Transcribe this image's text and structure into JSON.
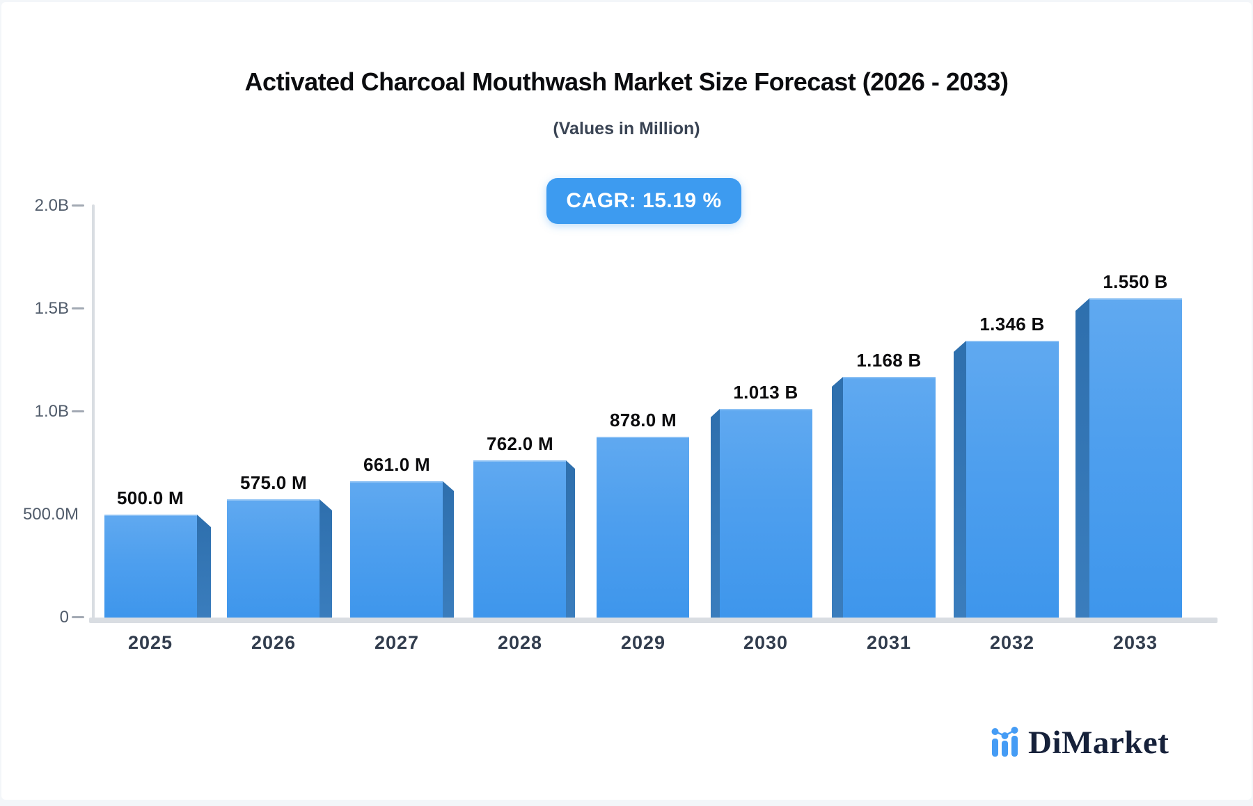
{
  "page": {
    "background": "#F3F6F9",
    "card_background": "#FFFFFF"
  },
  "chart_data": {
    "type": "bar",
    "title": "Activated Charcoal Mouthwash Market Size Forecast (2026 - 2033)",
    "subtitle": "(Values in Million)",
    "badge_label": "CAGR: 15.19 %",
    "categories": [
      "2025",
      "2026",
      "2027",
      "2028",
      "2029",
      "2030",
      "2031",
      "2032",
      "2033"
    ],
    "values_millions": [
      500,
      575,
      661,
      762,
      878,
      1013,
      1168,
      1346,
      1550
    ],
    "value_labels": [
      "500.0 M",
      "575.0 M",
      "661.0 M",
      "762.0 M",
      "878.0 M",
      "1.013 B",
      "1.168 B",
      "1.346 B",
      "1.550 B"
    ],
    "y_axis": {
      "range_millions": [
        0,
        2000
      ],
      "ticks": [
        {
          "label": "2.0B",
          "value": 2000,
          "dash": true
        },
        {
          "label": "1.5B",
          "value": 1500,
          "dash": true
        },
        {
          "label": "1.0B",
          "value": 1000,
          "dash": true
        },
        {
          "label": "500.0M",
          "value": 500,
          "dash": false
        },
        {
          "label": "0",
          "value": 0,
          "dash": true
        }
      ]
    },
    "grid": false,
    "legend": null,
    "colors": {
      "bar_face_top": "#60A9F0",
      "bar_face_bottom": "#3E96EC",
      "bar_side": "#2E6FAD",
      "badge_background": "#3D9BF0",
      "axis": "#D9DDE2",
      "tick_text": "#515C6B",
      "year_text": "#313C4D",
      "value_text": "#0B0B0D"
    }
  },
  "branding": {
    "logo_text": "DiMarket",
    "logo_icon": "mini-bar-line-chart-icon",
    "logo_icon_color": "#459CF5",
    "logo_text_color": "#16213A"
  }
}
